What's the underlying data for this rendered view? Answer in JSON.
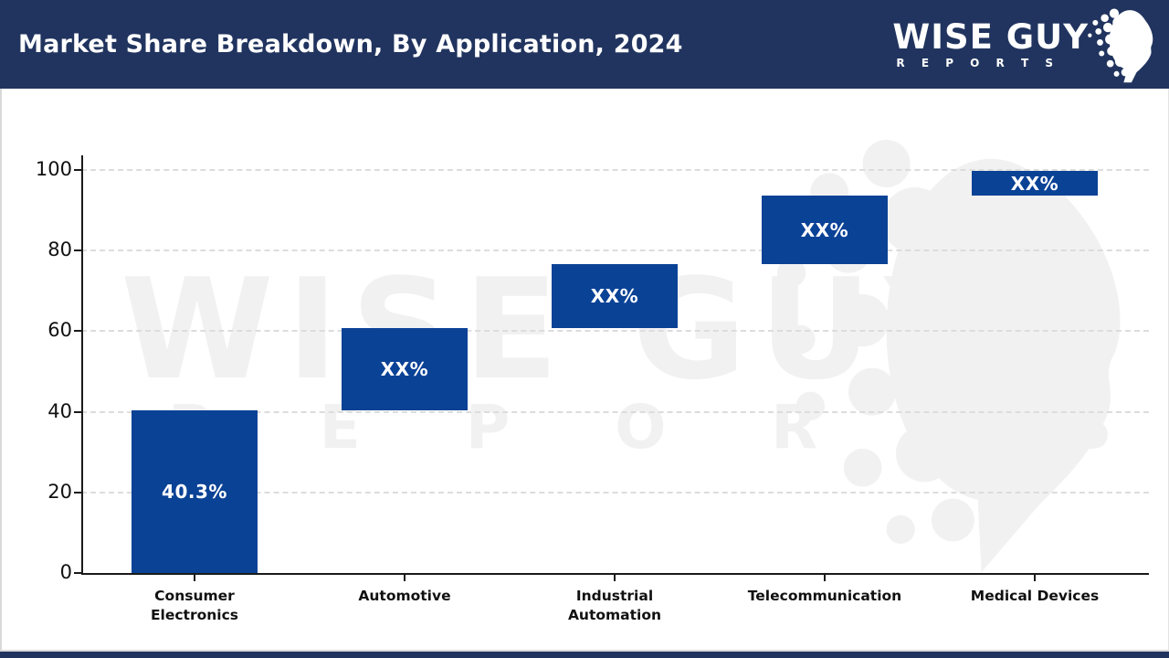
{
  "header": {
    "title": "Market Share Breakdown, By Application, 2024",
    "brand_name": "WISE GUY",
    "brand_subtitle": "R E P O R T S"
  },
  "watermark": {
    "line1": "WISE GUY",
    "line2": "R E P O R T S"
  },
  "colors": {
    "header_bg": "#21345f",
    "footer_bg": "#21345f",
    "bar": "#0a4296",
    "bar_label": "#ffffff",
    "grid": "#dcdcdc",
    "axis": "#1a1a1a",
    "watermark": "#f1f1f1"
  },
  "chart_data": {
    "type": "bar",
    "variant": "waterfall",
    "title": "Market Share Breakdown, By Application, 2024",
    "categories": [
      "Consumer\nElectronics",
      "Automotive",
      "Industrial\nAutomation",
      "Telecommunication",
      "Medical Devices"
    ],
    "bar_labels": [
      "40.3%",
      "XX%",
      "XX%",
      "XX%",
      "XX%"
    ],
    "bar_start": [
      0,
      40.3,
      60.8,
      76.6,
      93.6
    ],
    "bar_end": [
      40.3,
      60.8,
      76.6,
      93.6,
      99.8
    ],
    "xlabel": "",
    "ylabel": "",
    "ylim": [
      0,
      100
    ],
    "yticks": [
      0,
      20,
      40,
      60,
      80,
      100
    ],
    "grid": "horizontal-dashed",
    "legend": "none"
  }
}
